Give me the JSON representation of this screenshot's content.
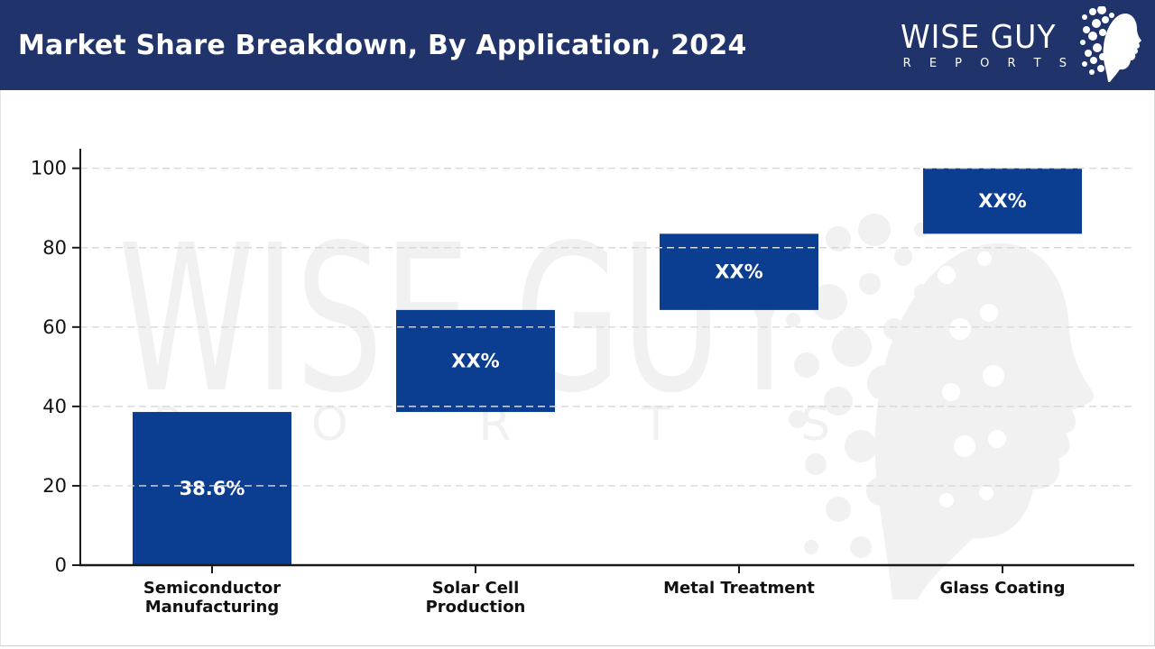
{
  "header": {
    "title": "Market Share Breakdown, By Application, 2024",
    "logo": {
      "primary": "WISE GUY",
      "secondary": "R E P O R T S"
    }
  },
  "watermark": {
    "primary": "WISE GUY",
    "secondary": "P O R T S"
  },
  "chart_data": {
    "type": "bar",
    "subtype": "floating-waterfall",
    "title": "Market Share Breakdown, By Application, 2024",
    "categories": [
      [
        "Semiconductor",
        "Manufacturing"
      ],
      [
        "Solar Cell",
        "Production"
      ],
      [
        "Metal Treatment"
      ],
      [
        "Glass Coating"
      ]
    ],
    "segments": [
      {
        "category": "Semiconductor Manufacturing",
        "start": 0,
        "end": 38.6,
        "label": "38.6%"
      },
      {
        "category": "Solar Cell Production",
        "start": 38.6,
        "end": 64.3,
        "label": "XX%"
      },
      {
        "category": "Metal Treatment",
        "start": 64.3,
        "end": 83.5,
        "label": "XX%"
      },
      {
        "category": "Glass Coating",
        "start": 83.5,
        "end": 100,
        "label": "XX%"
      }
    ],
    "yticks": [
      0,
      20,
      40,
      60,
      80,
      100
    ],
    "ylim": [
      0,
      105
    ],
    "xlabel": "",
    "ylabel": "",
    "grid": "horizontal-dashed",
    "legend": "none",
    "colors": {
      "bar": "#0b3d91",
      "bar_label": "#ffffff",
      "axis": "#1a1a1a",
      "tick_label": "#111111",
      "gridline": "#d9d9d9"
    }
  },
  "colors": {
    "header_bg": "#20336a",
    "page_bg": "#ffffff",
    "watermark": "#f1f1f1",
    "edge_border": "#d0d0d0"
  }
}
